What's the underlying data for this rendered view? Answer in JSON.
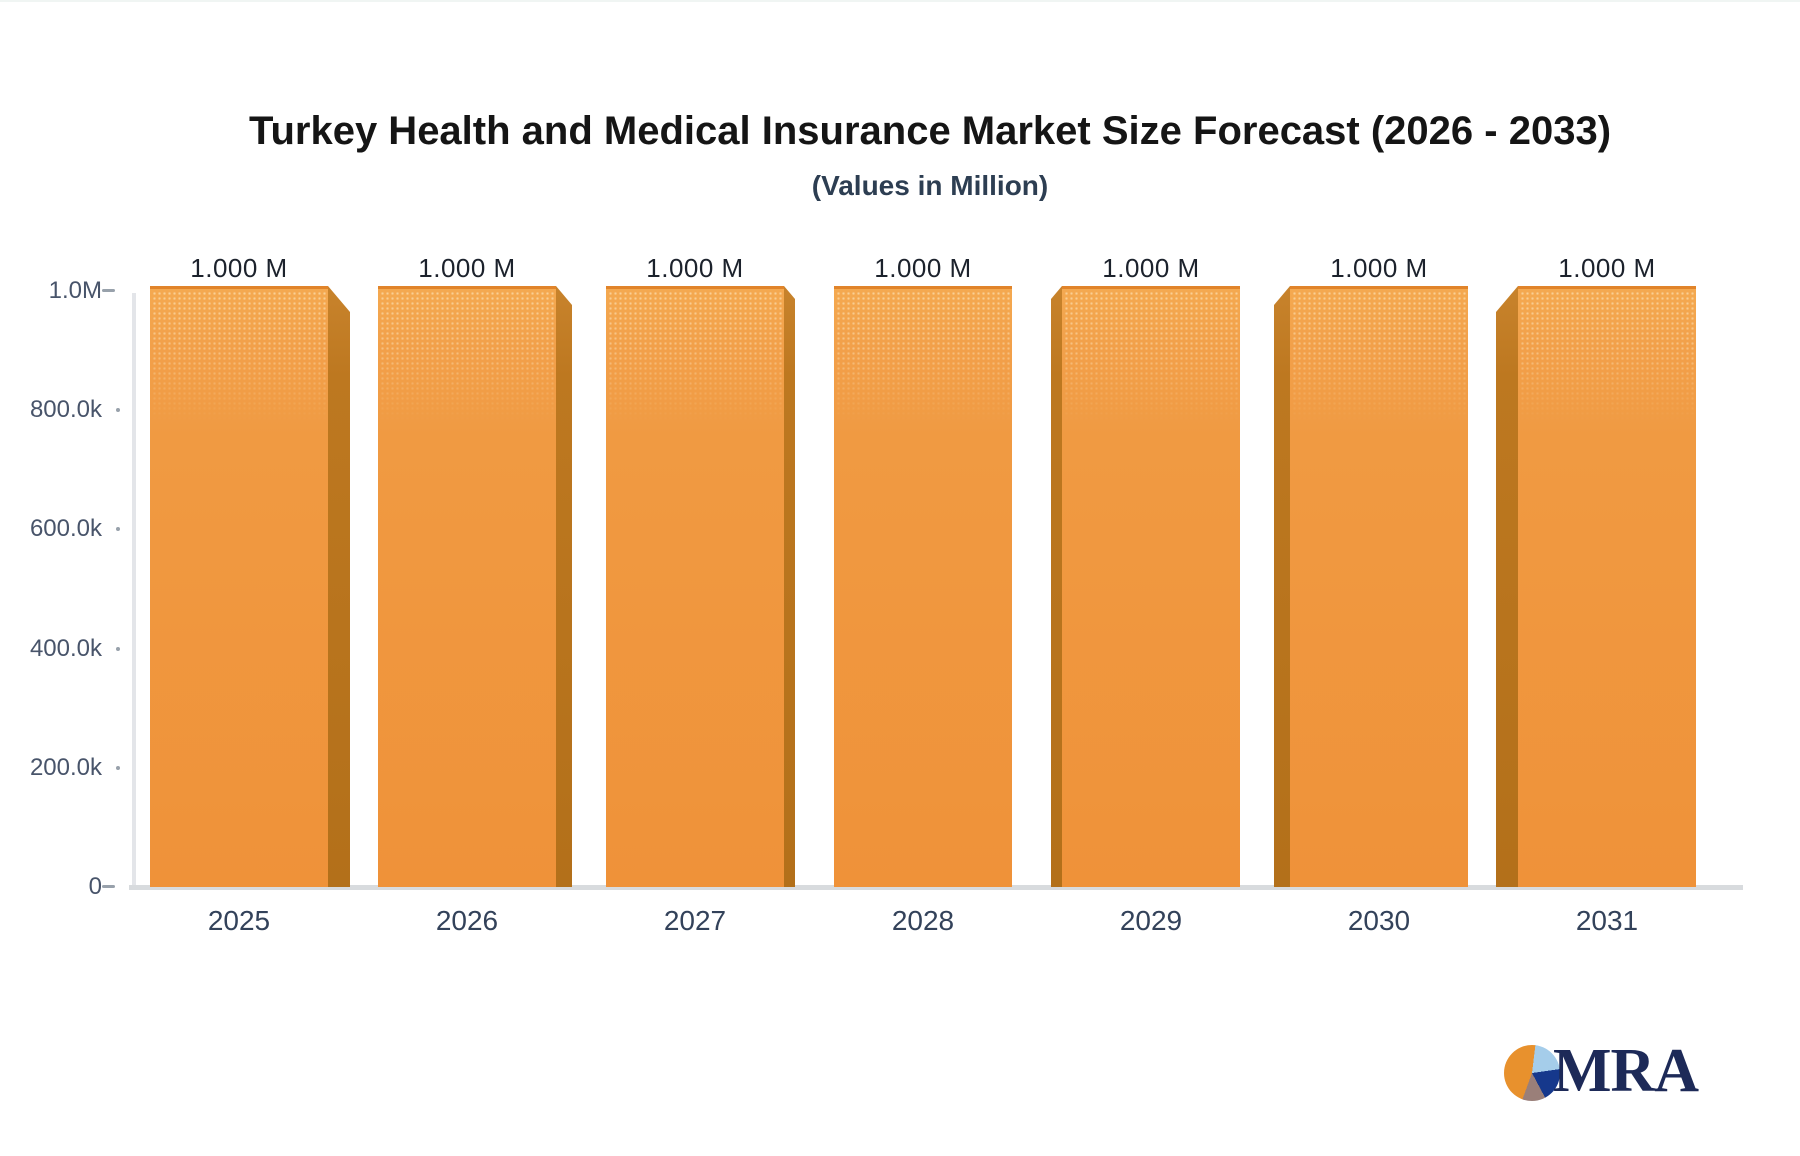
{
  "title": "Turkey Health and Medical Insurance Market Size Forecast (2026 - 2033)",
  "subtitle": "(Values in Million)",
  "chart_data": {
    "type": "bar",
    "title": "Turkey Health and Medical Insurance Market Size Forecast (2026 - 2033)",
    "subtitle": "(Values in Million)",
    "categories": [
      "2025",
      "2026",
      "2027",
      "2028",
      "2029",
      "2030",
      "2031"
    ],
    "values": [
      1000000,
      1000000,
      1000000,
      1000000,
      1000000,
      1000000,
      1000000
    ],
    "value_labels": [
      "1.000 M",
      "1.000 M",
      "1.000 M",
      "1.000 M",
      "1.000 M",
      "1.000 M",
      "1.000 M"
    ],
    "xlabel": "",
    "ylabel": "",
    "ylim": [
      0,
      1000000
    ],
    "yticks": [
      {
        "value": 0,
        "label": "0"
      },
      {
        "value": 200000,
        "label": "200.0k"
      },
      {
        "value": 400000,
        "label": "400.0k"
      },
      {
        "value": 600000,
        "label": "600.0k"
      },
      {
        "value": 800000,
        "label": "800.0k"
      },
      {
        "value": 1000000,
        "label": "1.0M"
      }
    ],
    "grid": false,
    "legend": null,
    "bar_color": "#f09a42",
    "bar_side_color": "#bd7820",
    "bar_top_edge_color": "#e1842a",
    "style": "3d-perspective-columns"
  },
  "logo": {
    "text": "MRA",
    "icon": "pie-chart",
    "pie_colors": [
      "#e8912d",
      "#a5cdea",
      "#16388c",
      "#9a7f79"
    ],
    "text_color": "#1d2a58"
  }
}
